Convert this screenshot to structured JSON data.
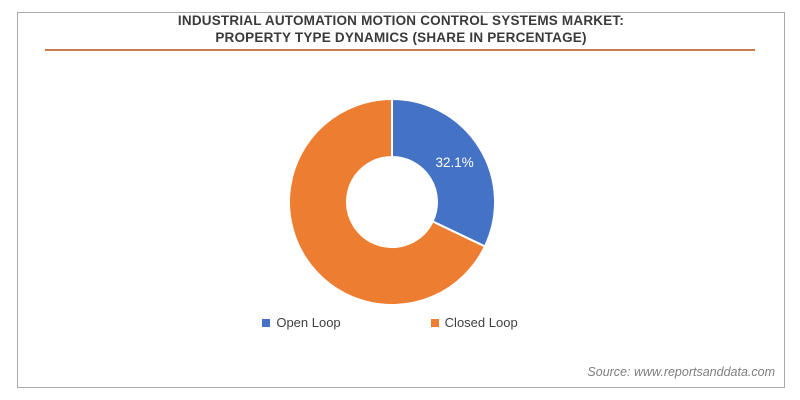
{
  "chart": {
    "title_line1": "INDUSTRIAL AUTOMATION MOTION CONTROL SYSTEMS MARKET:",
    "title_line2": "PROPERTY TYPE DYNAMICS (SHARE IN PERCENTAGE)"
  },
  "chart_data": {
    "type": "pie",
    "subtype": "donut",
    "title": "INDUSTRIAL AUTOMATION MOTION CONTROL SYSTEMS MARKET: PROPERTY TYPE DYNAMICS (SHARE IN PERCENTAGE)",
    "slices": [
      {
        "label": "Open Loop",
        "value": 32.1,
        "color": "#4472c4",
        "data_label": "32.1%"
      },
      {
        "label": "Closed Loop",
        "value": 67.9,
        "color": "#ed7d31",
        "data_label": null
      }
    ],
    "start_angle_deg": 0,
    "direction": "clockwise",
    "inner_radius_ratio": 0.44,
    "legend_position": "bottom",
    "data_label_color": "#ffffff"
  },
  "footer": {
    "source": "Source: www.reportsanddata.com"
  },
  "theme": {
    "divider_color": "#c87c4d",
    "border_color": "#a9a9a9"
  }
}
